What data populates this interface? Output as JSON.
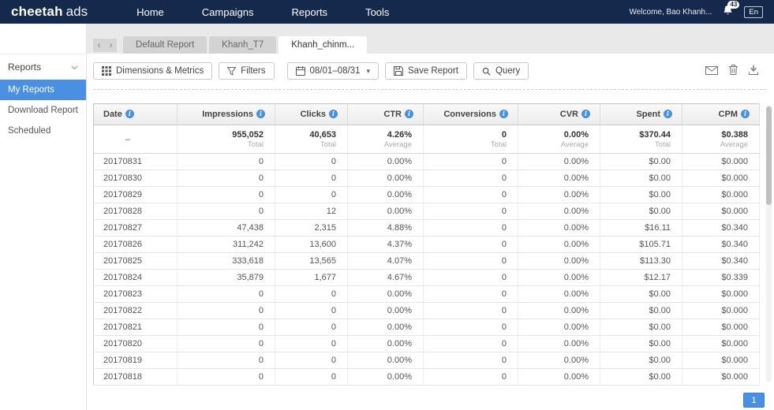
{
  "navbar": {
    "logo_bold": "cheetah",
    "logo_light": "ads",
    "items": [
      {
        "label": "Home"
      },
      {
        "label": "Campaigns"
      },
      {
        "label": "Reports"
      },
      {
        "label": "Tools"
      }
    ],
    "welcome": "Welcome,",
    "user": "Bao Khanh...",
    "notification_count": "43",
    "language": "En"
  },
  "sidebar": {
    "header": "Reports",
    "items": [
      {
        "label": "My Reports",
        "active": true
      },
      {
        "label": "Download Report",
        "active": false
      },
      {
        "label": "Scheduled",
        "active": false
      }
    ]
  },
  "tabs": [
    {
      "label": "Default Report",
      "active": false
    },
    {
      "label": "Khanh_T7",
      "active": false
    },
    {
      "label": "Khanh_chinm...",
      "active": true
    }
  ],
  "toolbar": {
    "dimensions_metrics_label": "Dimensions & Metrics",
    "filters_label": "Filters",
    "date_range_label": "08/01–08/31",
    "save_report_label": "Save Report",
    "query_label": "Query"
  },
  "table": {
    "columns": [
      "Date",
      "Impressions",
      "Clicks",
      "CTR",
      "Conversions",
      "CVR",
      "Spent",
      "CPM"
    ],
    "summary": {
      "label": "–",
      "cells": [
        {
          "value": "955,052",
          "sub": "Total"
        },
        {
          "value": "40,653",
          "sub": "Total"
        },
        {
          "value": "4.26%",
          "sub": "Average"
        },
        {
          "value": "0",
          "sub": "Total"
        },
        {
          "value": "0.00%",
          "sub": "Average"
        },
        {
          "value": "$370.44",
          "sub": "Total"
        },
        {
          "value": "$0.388",
          "sub": "Average"
        }
      ]
    },
    "rows": [
      {
        "date": "20170831",
        "cells": [
          "0",
          "0",
          "0.00%",
          "0",
          "0.00%",
          "$0.00",
          "$0.000"
        ]
      },
      {
        "date": "20170830",
        "cells": [
          "0",
          "0",
          "0.00%",
          "0",
          "0.00%",
          "$0.00",
          "$0.000"
        ]
      },
      {
        "date": "20170829",
        "cells": [
          "0",
          "0",
          "0.00%",
          "0",
          "0.00%",
          "$0.00",
          "$0.000"
        ]
      },
      {
        "date": "20170828",
        "cells": [
          "0",
          "12",
          "0.00%",
          "0",
          "0.00%",
          "$0.00",
          "$0.000"
        ]
      },
      {
        "date": "20170827",
        "cells": [
          "47,438",
          "2,315",
          "4.88%",
          "0",
          "0.00%",
          "$16.11",
          "$0.340"
        ]
      },
      {
        "date": "20170826",
        "cells": [
          "311,242",
          "13,600",
          "4.37%",
          "0",
          "0.00%",
          "$105.71",
          "$0.340"
        ]
      },
      {
        "date": "20170825",
        "cells": [
          "333,618",
          "13,565",
          "4.07%",
          "0",
          "0.00%",
          "$113.30",
          "$0.340"
        ]
      },
      {
        "date": "20170824",
        "cells": [
          "35,879",
          "1,677",
          "4.67%",
          "0",
          "0.00%",
          "$12.17",
          "$0.339"
        ]
      },
      {
        "date": "20170823",
        "cells": [
          "0",
          "0",
          "0.00%",
          "0",
          "0.00%",
          "$0.00",
          "$0.000"
        ]
      },
      {
        "date": "20170822",
        "cells": [
          "0",
          "0",
          "0.00%",
          "0",
          "0.00%",
          "$0.00",
          "$0.000"
        ]
      },
      {
        "date": "20170821",
        "cells": [
          "0",
          "0",
          "0.00%",
          "0",
          "0.00%",
          "$0.00",
          "$0.000"
        ]
      },
      {
        "date": "20170820",
        "cells": [
          "0",
          "0",
          "0.00%",
          "0",
          "0.00%",
          "$0.00",
          "$0.000"
        ]
      },
      {
        "date": "20170819",
        "cells": [
          "0",
          "0",
          "0.00%",
          "0",
          "0.00%",
          "$0.00",
          "$0.000"
        ]
      },
      {
        "date": "20170818",
        "cells": [
          "0",
          "0",
          "0.00%",
          "0",
          "0.00%",
          "$0.00",
          "$0.000"
        ]
      }
    ]
  },
  "pagination": {
    "page": "1"
  },
  "colors": {
    "navbar_bg": "#14294b",
    "accent_blue": "#4a90e2",
    "active_tab_bg": "#ffffff",
    "inactive_tab_bg": "#d3d3d3"
  }
}
